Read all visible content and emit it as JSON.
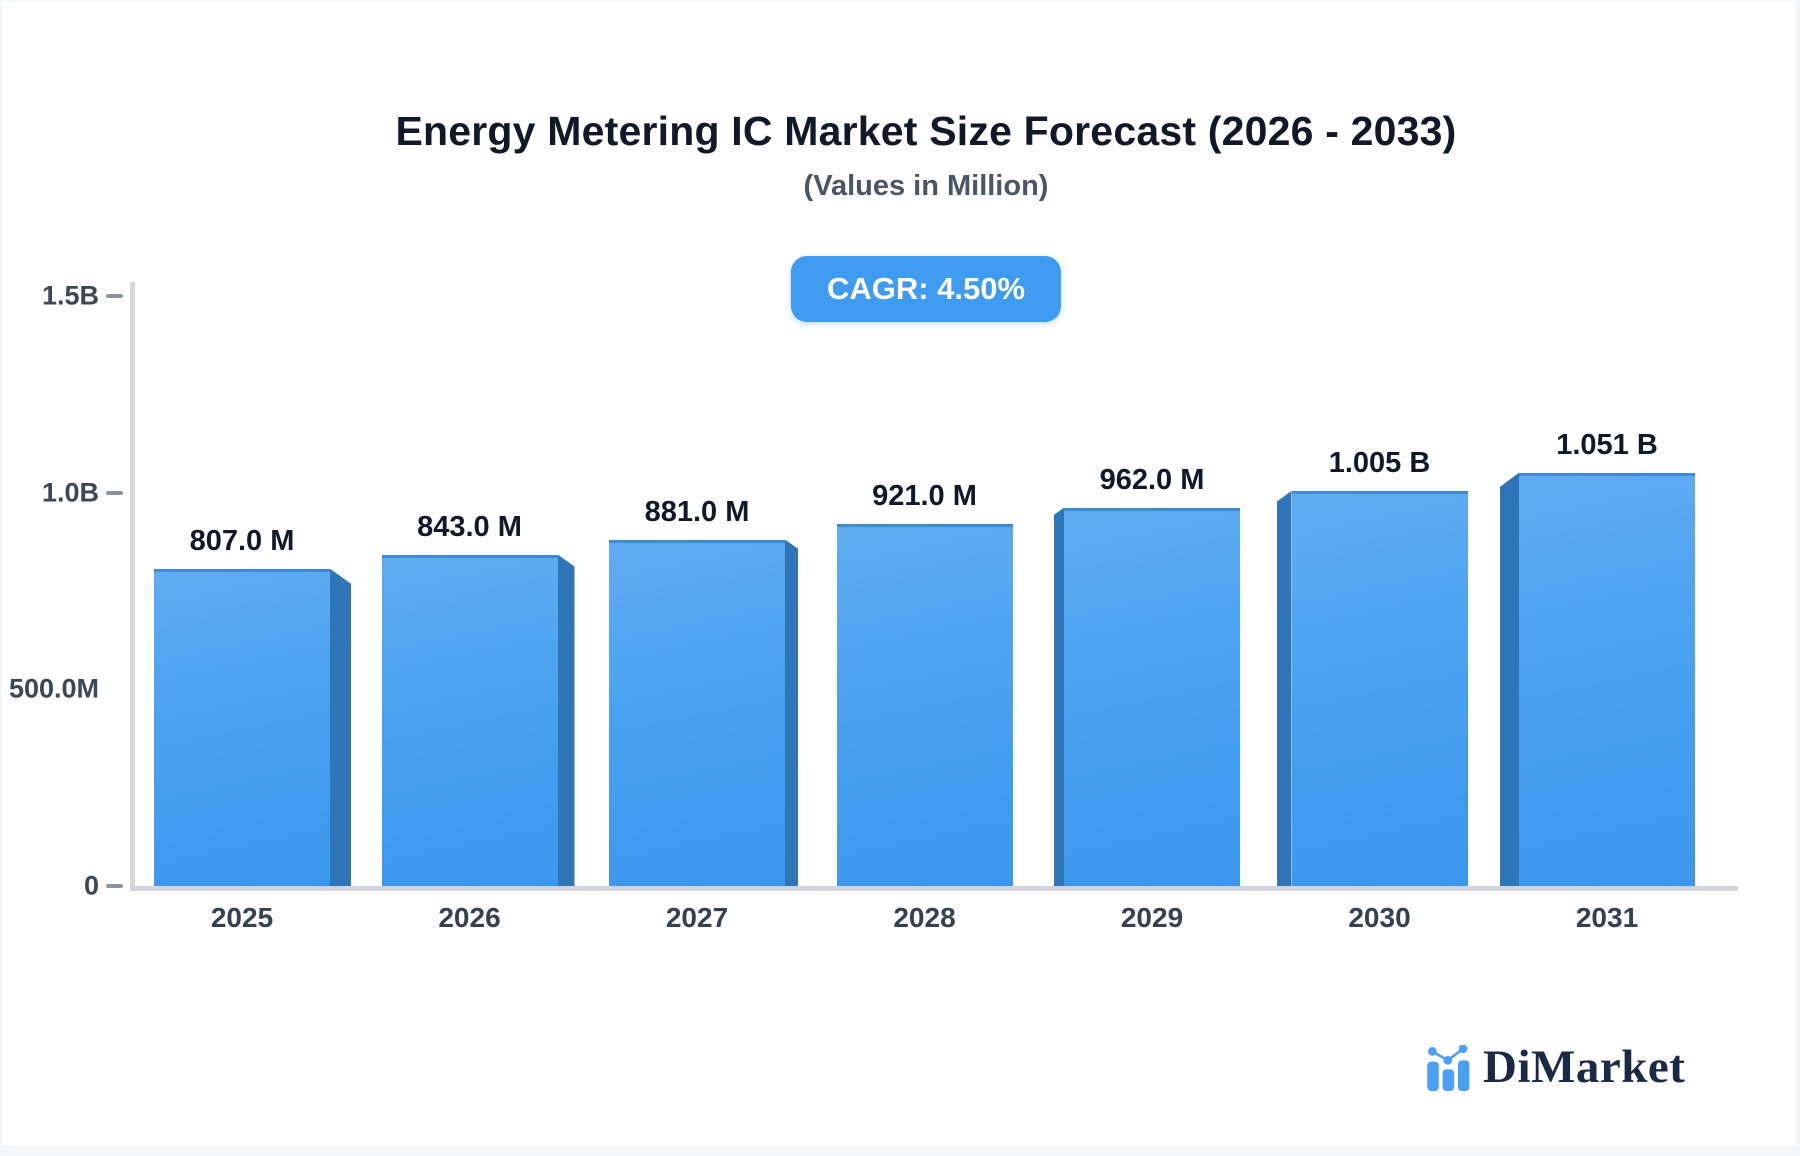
{
  "page": {
    "background": "#f4f6f8",
    "card_background": "#ffffff"
  },
  "header": {
    "title": "Energy Metering IC Market Size Forecast (2026 - 2033)",
    "subtitle": "(Values in Million)"
  },
  "cagr_badge": {
    "label": "CAGR: 4.50%",
    "background": "#3E9BF0",
    "text_color": "#ffffff"
  },
  "chart_data": {
    "type": "bar",
    "title": "Energy Metering IC Market Size Forecast (2026 - 2033)",
    "subtitle": "(Values in Million)",
    "categories": [
      "2025",
      "2026",
      "2027",
      "2028",
      "2029",
      "2030",
      "2031"
    ],
    "values": [
      807,
      843,
      881,
      921,
      962,
      1005,
      1051
    ],
    "value_unit": "million USD",
    "bar_labels": [
      "807.0 M",
      "843.0 M",
      "881.0 M",
      "921.0 M",
      "962.0 M",
      "1.005 B",
      "1.051 B"
    ],
    "xlabel": "",
    "ylabel": "",
    "ylim": [
      0,
      1500
    ],
    "yticks": [
      {
        "label": "1.5B",
        "value": 1500,
        "dash": true
      },
      {
        "label": "1.0B",
        "value": 1000,
        "dash": true
      },
      {
        "label": "500.0M",
        "value": 500,
        "dash": false
      },
      {
        "label": "0",
        "value": 0,
        "dash": true
      }
    ],
    "grid": false,
    "legend": null,
    "style": "3d-beveled-bars, perspective centered on middle bar",
    "colors": {
      "bar_gradient_top": "#60ADF2",
      "bar_gradient_bottom": "#3B97EE",
      "bar_side_face": "#2E76B8",
      "axis_line": "#d5d8dd",
      "tick_text": "#3d4754",
      "value_text": "#111827"
    }
  },
  "logo": {
    "text": "DiMarket",
    "icon": "mini-bar-chart-icon",
    "icon_color": "#4AA0F5",
    "text_color": "#1b2a44"
  }
}
